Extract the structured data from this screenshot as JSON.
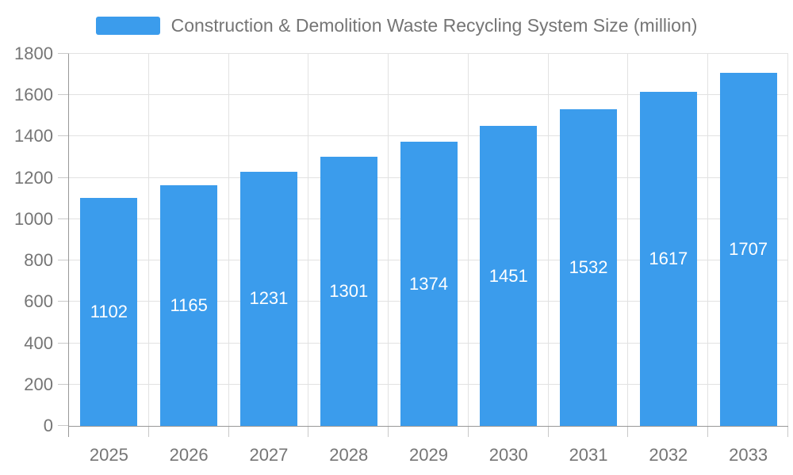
{
  "chart_data": {
    "type": "bar",
    "title": "Construction & Demolition Waste Recycling System Size (million)",
    "categories": [
      "2025",
      "2026",
      "2027",
      "2028",
      "2029",
      "2030",
      "2031",
      "2032",
      "2033"
    ],
    "values": [
      1102,
      1165,
      1231,
      1301,
      1374,
      1451,
      1532,
      1617,
      1707
    ],
    "xlabel": "",
    "ylabel": "",
    "ylim": [
      0,
      1800
    ],
    "ytick_interval": 200,
    "yticks": [
      "0",
      "200",
      "400",
      "600",
      "800",
      "1000",
      "1200",
      "1400",
      "1600",
      "1800"
    ],
    "grid": true,
    "legend_position": "top",
    "bar_labels_visible": true,
    "legend_entries": [
      "Construction & Demolition Waste Recycling System Size (million)"
    ]
  },
  "colors": {
    "bar": "#3B9CEC",
    "bar_label": "#FFFFFF",
    "axis": "#999999",
    "tick": "#C9C9C9",
    "grid": "#E2E2E2",
    "text": "#757575",
    "background": "#FFFFFF"
  }
}
